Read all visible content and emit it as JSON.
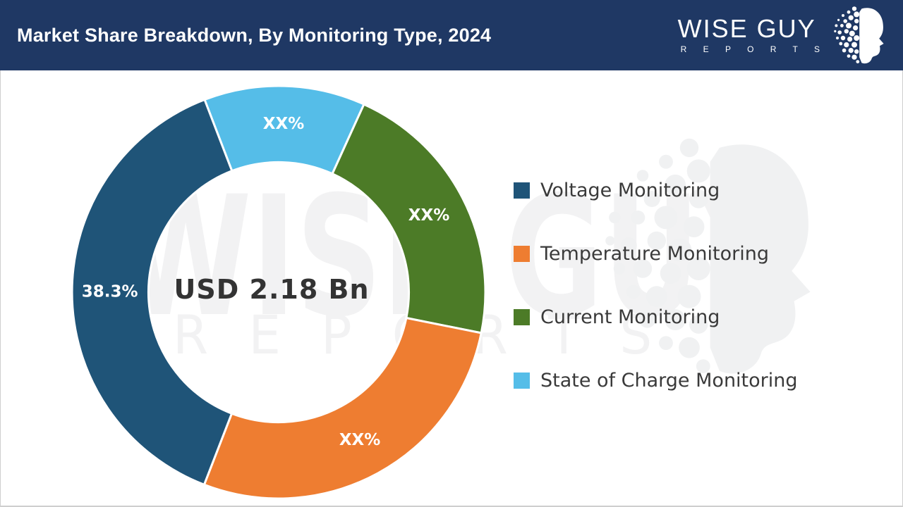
{
  "header": {
    "title": "Market Share Breakdown, By Monitoring Type, 2024",
    "bg_color": "#1F3864",
    "logo": {
      "line1": "WISE GUY",
      "line2": "R E P O R T S"
    }
  },
  "watermark": {
    "row1": "WISE GUY",
    "row2": "R E P O R T S"
  },
  "chart_data": {
    "type": "pie",
    "donut": true,
    "title": "Market Share Breakdown, By Monitoring Type, 2024",
    "center_label": "USD 2.18 Bn",
    "slices": [
      {
        "label": "Voltage Monitoring",
        "display_label": "38.3%",
        "value_pct": 38.3,
        "color": "#1F5478"
      },
      {
        "label": "Temperature Monitoring",
        "display_label": "XX%",
        "value_pct": 27.7,
        "color": "#EE7D31"
      },
      {
        "label": "Current Monitoring",
        "display_label": "XX%",
        "value_pct": 21.4,
        "color": "#4C7B27"
      },
      {
        "label": "State of Charge Monitoring",
        "display_label": "XX%",
        "value_pct": 12.6,
        "color": "#55BDE8"
      }
    ],
    "layout": {
      "start_angle_deg": -21,
      "draw_order": [
        3,
        2,
        1,
        0
      ],
      "legend_position": "right",
      "inner_radius_ratio": 0.63,
      "label_color": "#ffffff"
    }
  }
}
